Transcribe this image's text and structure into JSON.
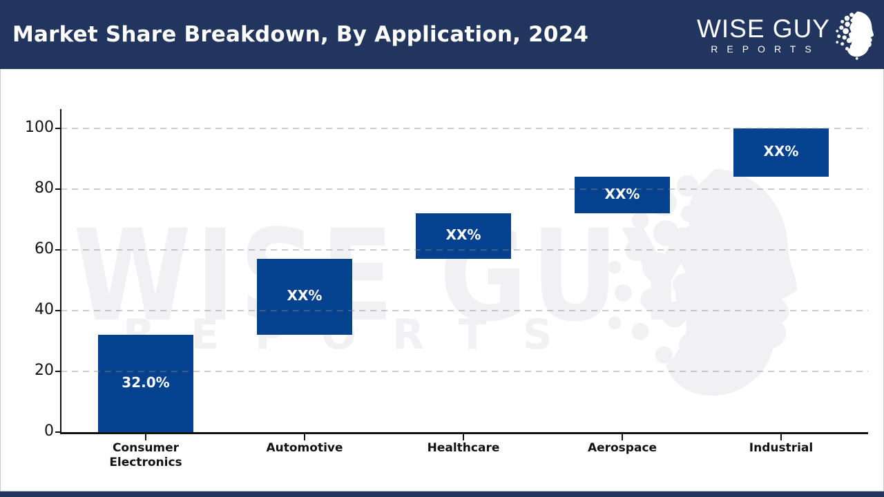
{
  "header": {
    "title": "Market Share Breakdown, By Application, 2024",
    "logo": {
      "line1": "WISE GUY",
      "line2": "REPORTS"
    }
  },
  "watermark": {
    "line1": "WISE GUY",
    "line2": "REPORTS"
  },
  "colors": {
    "header_bg": "#21355E",
    "footer_bg": "#21355E",
    "bar": "#04418F",
    "bar_label_text": "#FFFFFF",
    "axis": "#111111",
    "gridline": "#D9D9D9",
    "watermark": "#F1F1F4"
  },
  "chart_data": {
    "type": "bar",
    "subtype": "waterfall",
    "title": "Market Share Breakdown, By Application, 2024",
    "categories": [
      "Consumer Electronics",
      "Automotive",
      "Healthcare",
      "Aerospace",
      "Industrial"
    ],
    "segments": [
      {
        "category": "Consumer Electronics",
        "start": 0,
        "end": 32,
        "label": "32.0%"
      },
      {
        "category": "Automotive",
        "start": 32,
        "end": 57,
        "label": "XX%"
      },
      {
        "category": "Healthcare",
        "start": 57,
        "end": 72,
        "label": "XX%"
      },
      {
        "category": "Aerospace",
        "start": 72,
        "end": 84,
        "label": "XX%"
      },
      {
        "category": "Industrial",
        "start": 84,
        "end": 100,
        "label": "XX%"
      }
    ],
    "xlabel": "",
    "ylabel": "",
    "ylim": [
      0,
      100
    ],
    "yticks": [
      0,
      20,
      40,
      60,
      80,
      100
    ],
    "grid": "horizontal-dashed",
    "legend": "none"
  }
}
